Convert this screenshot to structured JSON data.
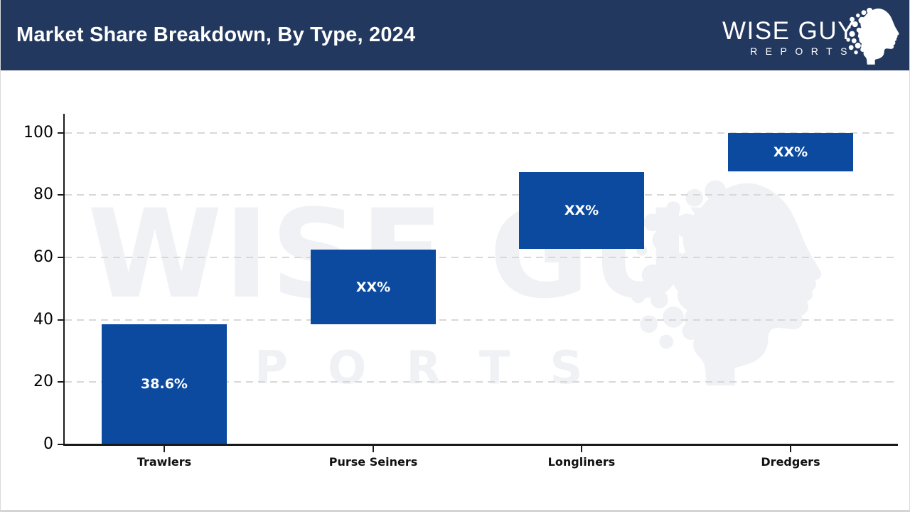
{
  "header": {
    "title": "Market Share Breakdown, By Type, 2024",
    "logo": {
      "line1": "WISE GUY",
      "line2": "REPORTS"
    }
  },
  "watermark": {
    "line1": "WISE GUY",
    "line2": "REPORTS"
  },
  "chart_data": {
    "type": "bar",
    "subtype": "waterfall-floating-bars",
    "title": "Market Share Breakdown, By Type, 2024",
    "categories": [
      "Trawlers",
      "Purse Seiners",
      "Longliners",
      "Dredgers"
    ],
    "segments": [
      {
        "category": "Trawlers",
        "start": 0,
        "end": 38.6,
        "label": "38.6%"
      },
      {
        "category": "Purse Seiners",
        "start": 38.6,
        "end": 62.4,
        "label": "XX%"
      },
      {
        "category": "Longliners",
        "start": 62.7,
        "end": 87.3,
        "label": "XX%"
      },
      {
        "category": "Dredgers",
        "start": 87.5,
        "end": 100,
        "label": "XX%"
      }
    ],
    "y_ticks": [
      0,
      20,
      40,
      60,
      80,
      100
    ],
    "ylim": [
      0,
      106
    ],
    "xlabel": "",
    "ylabel": "",
    "grid": "horizontal-dashed",
    "legend": "none",
    "bar_color": "#0b4a9e",
    "value_label_color": "#ffffff"
  },
  "colors": {
    "header_bg": "#22385f",
    "bar": "#0b4a9e",
    "gridline": "#d8d8d8",
    "watermark": "#eff1f4",
    "axis": "#1a1a1a"
  }
}
